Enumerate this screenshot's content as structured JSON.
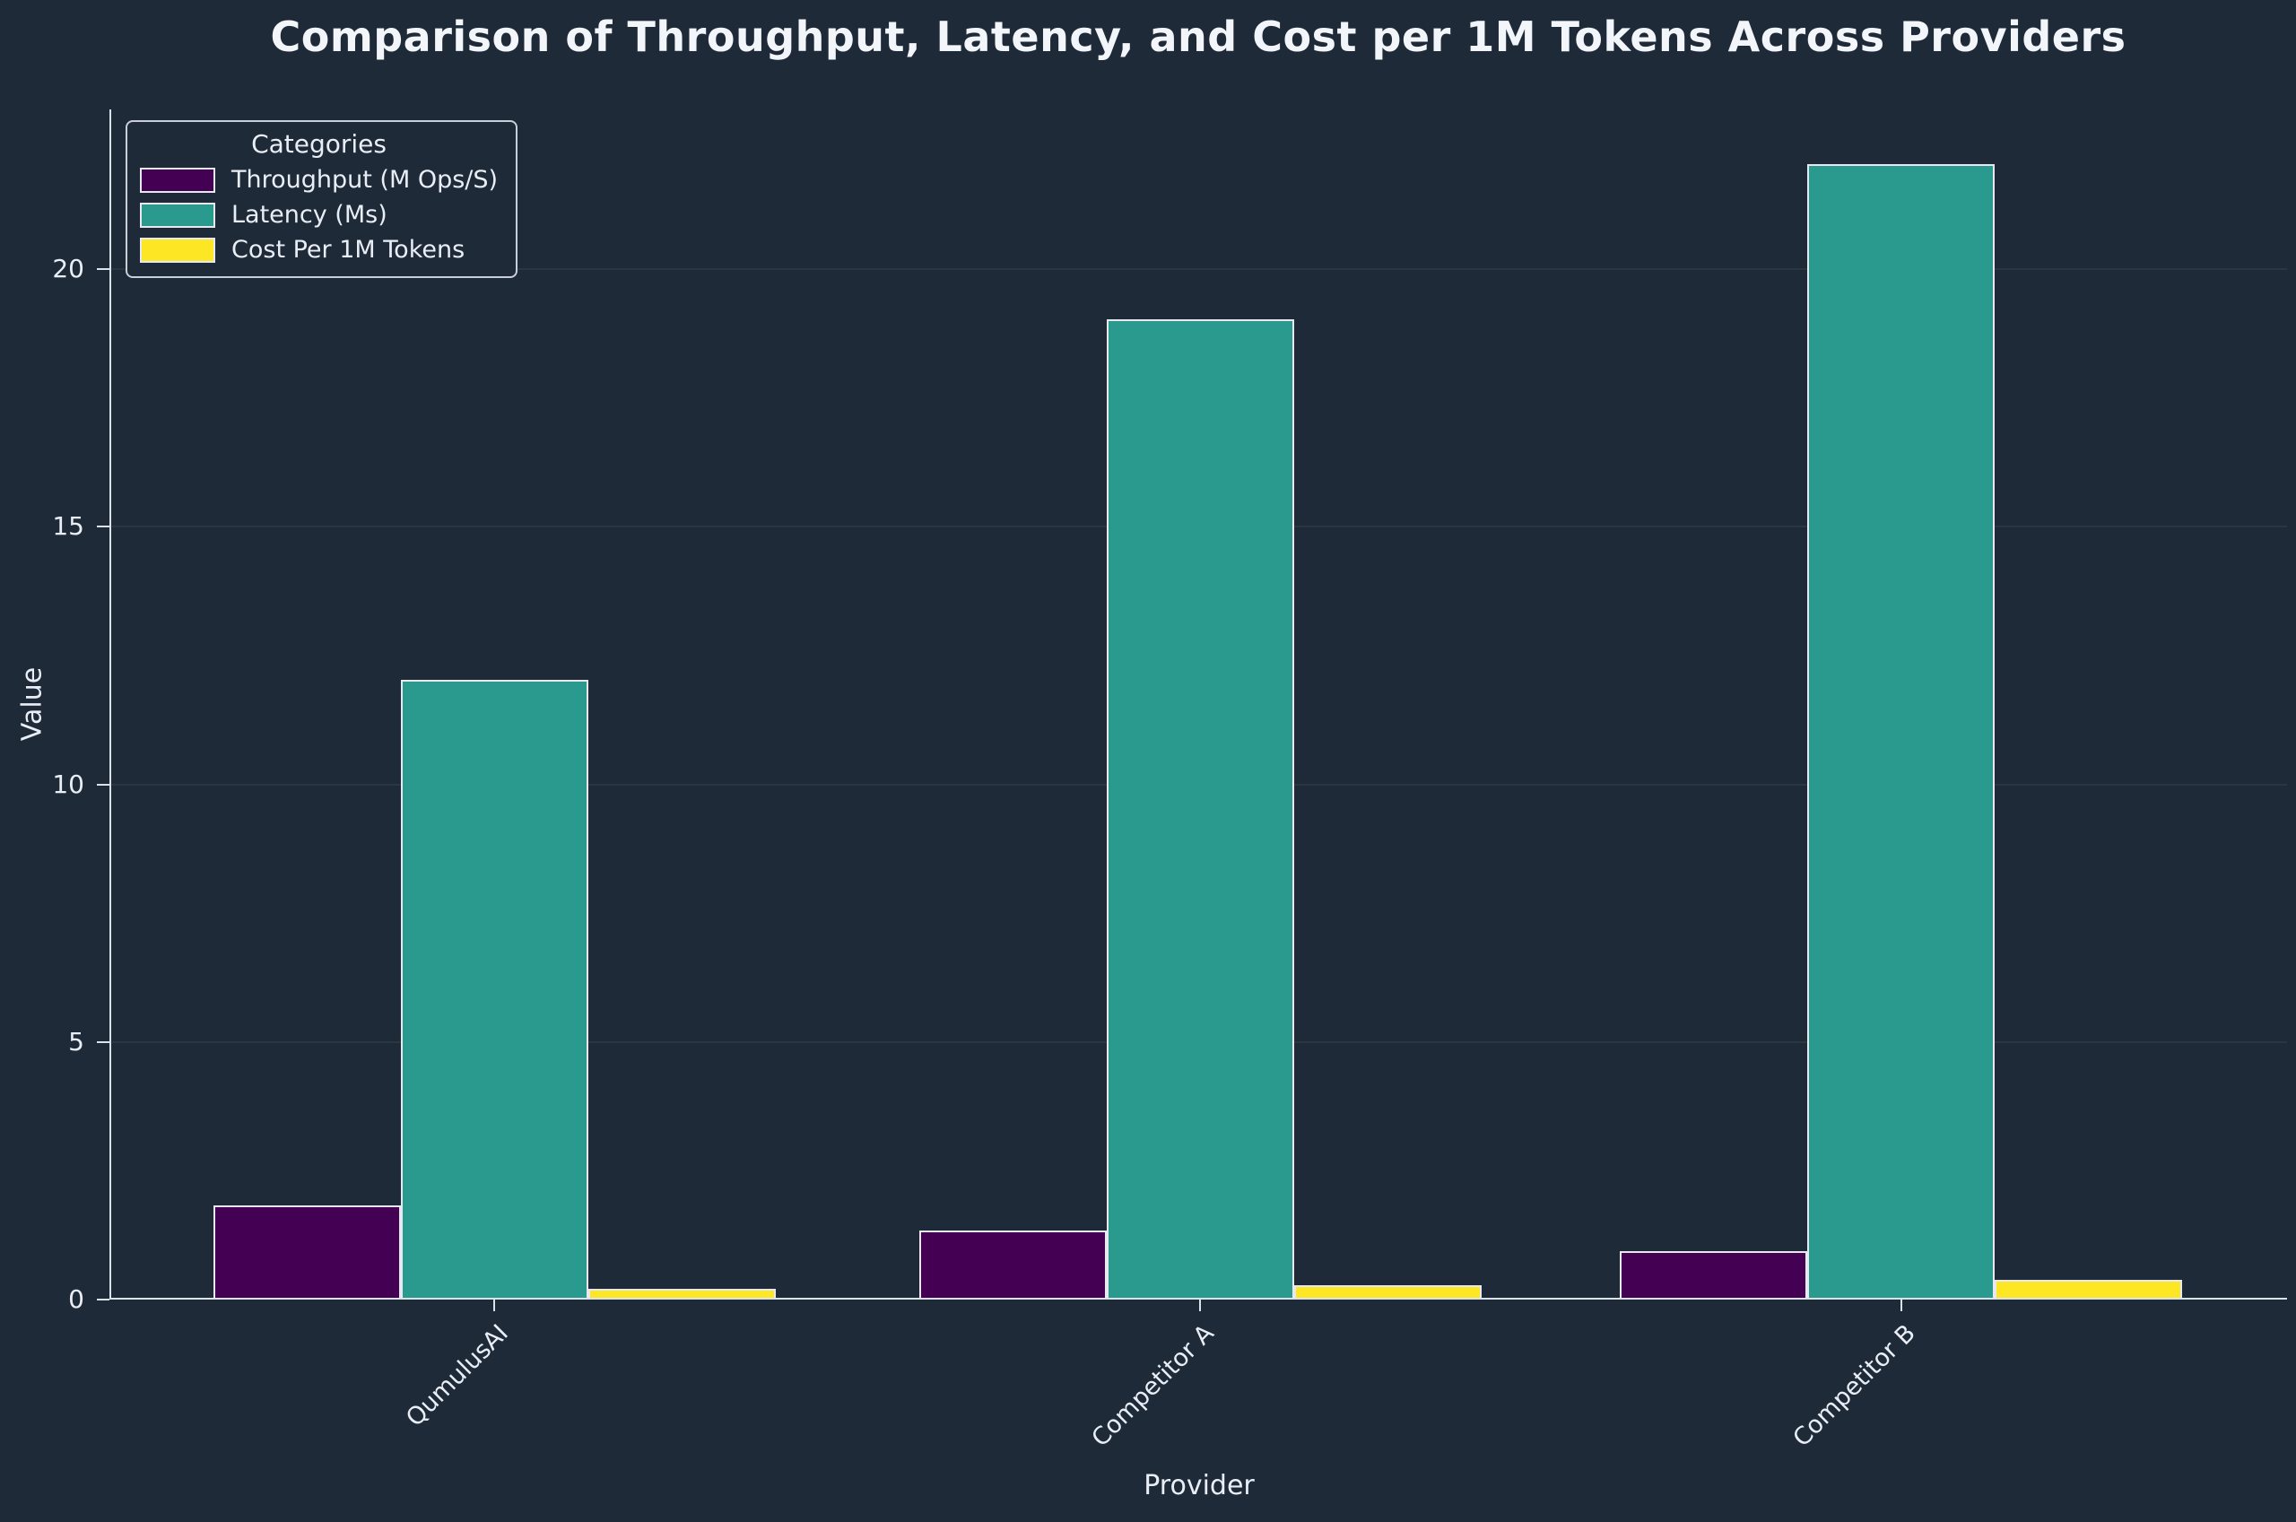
{
  "title": "Comparison of Throughput, Latency, and Cost per 1M Tokens Across Providers",
  "colors": {
    "background": "#1f2a38",
    "text": "#e9eef6",
    "spine": "#dce2ea",
    "bar_edge": "#e8e8f0",
    "grid": "rgba(255,255,255,0.06)",
    "throughput": "#440154",
    "latency": "#2a998e",
    "cost": "#fde725"
  },
  "legend": {
    "title": "Categories",
    "position": "upper left"
  },
  "chart_data": {
    "type": "bar",
    "title": "Comparison of Throughput, Latency, and Cost per 1M Tokens Across Providers",
    "xlabel": "Provider",
    "ylabel": "Value",
    "categories": [
      "QumulusAI",
      "Competitor A",
      "Competitor B"
    ],
    "series": [
      {
        "name": "Throughput (M Ops/S)",
        "color": "#440154",
        "values": [
          1.8,
          1.3,
          0.9
        ]
      },
      {
        "name": "Latency (Ms)",
        "color": "#2a998e",
        "values": [
          12,
          19,
          22
        ]
      },
      {
        "name": "Cost Per 1M Tokens",
        "color": "#fde725",
        "values": [
          0.18,
          0.25,
          0.35
        ]
      }
    ],
    "ylim": [
      0,
      23.1
    ],
    "yticks": [
      0,
      5,
      10,
      15,
      20
    ],
    "grid": true,
    "legend_title": "Categories",
    "legend_position": "upper left"
  }
}
